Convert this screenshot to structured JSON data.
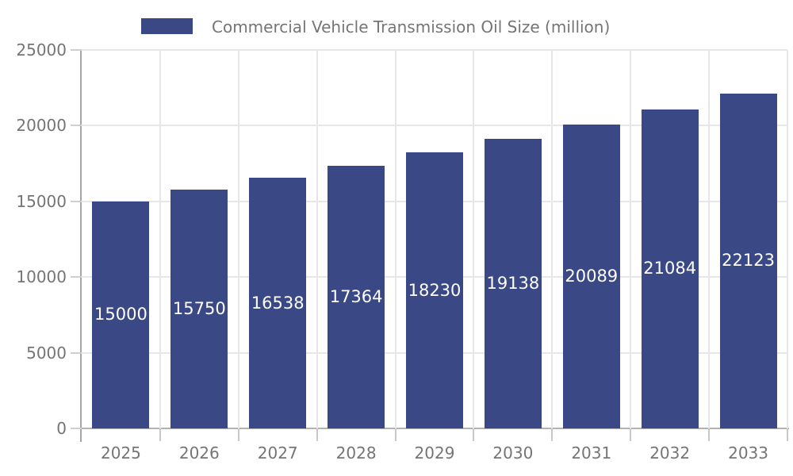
{
  "legend": {
    "label": "Commercial Vehicle Transmission Oil Size (million)"
  },
  "chart_data": {
    "type": "bar",
    "title": "Commercial Vehicle Transmission Oil Size (million)",
    "categories": [
      "2025",
      "2026",
      "2027",
      "2028",
      "2029",
      "2030",
      "2031",
      "2032",
      "2033"
    ],
    "values": [
      15000,
      15750,
      16538,
      17364,
      18230,
      19138,
      20089,
      21084,
      22123
    ],
    "xlabel": "",
    "ylabel": "",
    "ylim": [
      0,
      25000
    ],
    "yticks": [
      0,
      5000,
      10000,
      15000,
      20000,
      25000
    ],
    "grid": true,
    "legend_position": "top",
    "bar_color": "#3a4885",
    "bar_label_color": "#ffffff",
    "axis_text_color": "#757575"
  }
}
